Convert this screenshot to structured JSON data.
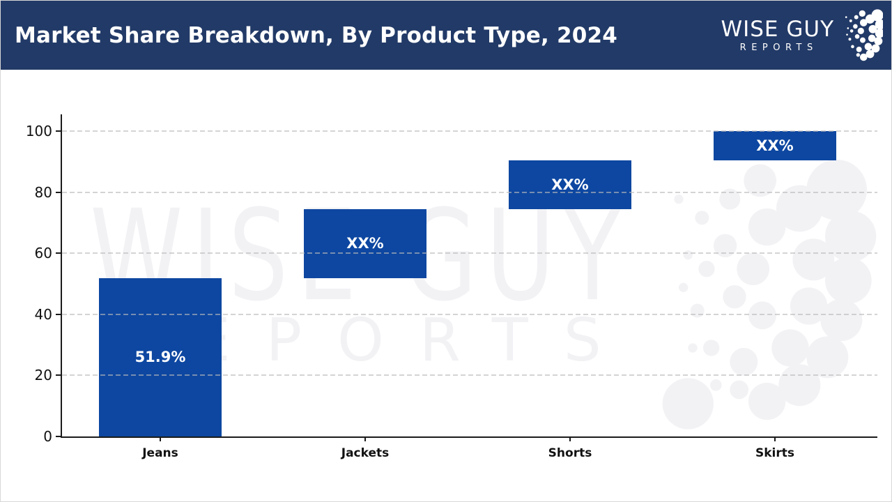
{
  "header": {
    "title": "Market Share Breakdown, By Product Type, 2024",
    "logo": {
      "brand": "WISE GUY",
      "sub": "REPORTS"
    }
  },
  "watermark": {
    "line1": "WISE GUY",
    "line2": "REPORTS"
  },
  "chart_data": {
    "type": "bar",
    "subtype": "waterfall",
    "title": "Market Share Breakdown, By Product Type, 2024",
    "categories": [
      "Jeans",
      "Jackets",
      "Shorts",
      "Skirts"
    ],
    "segments": [
      {
        "category": "Jeans",
        "start": 0,
        "end": 51.9,
        "label": "51.9%"
      },
      {
        "category": "Jackets",
        "start": 51.9,
        "end": 74.5,
        "label": "XX%"
      },
      {
        "category": "Shorts",
        "start": 74.5,
        "end": 90.5,
        "label": "XX%"
      },
      {
        "category": "Skirts",
        "start": 90.5,
        "end": 100,
        "label": "XX%"
      }
    ],
    "xlabel": "",
    "ylabel": "",
    "yticks": [
      0,
      20,
      40,
      60,
      80,
      100
    ],
    "ylim": [
      0,
      105
    ],
    "grid": "horizontal-dashed",
    "legend": "none",
    "bar_color": "#0D47A1",
    "value_label_color": "#ffffff"
  },
  "colors": {
    "header_bg": "#223A67",
    "bar": "#0D47A1",
    "axis": "#1a1a1a",
    "grid": "#c9c9c9",
    "watermark": "#f2f2f5",
    "page_border": "#d8d8d8"
  }
}
